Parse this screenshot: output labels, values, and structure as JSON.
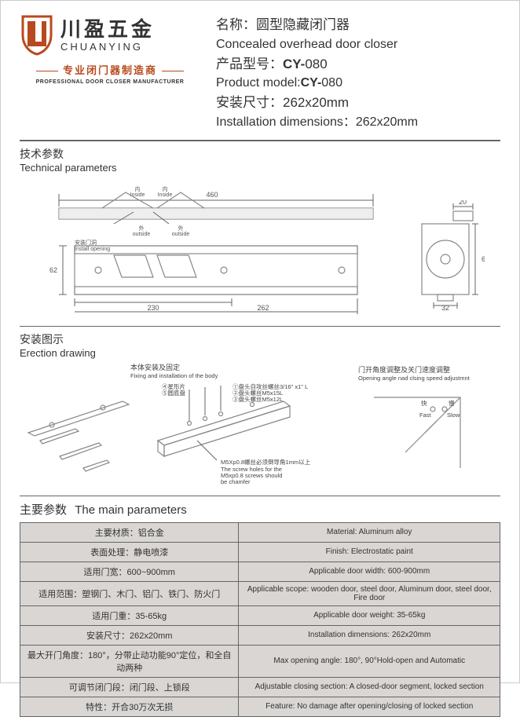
{
  "brand": {
    "cn": "川盈五金",
    "en": "CHUANYING",
    "tagline_cn": "专业闭门器制造商",
    "tagline_en": "PROFESSIONAL DOOR CLOSER MANUFACTURER",
    "shield_color": "#b74a1f",
    "shield_text_color": "#ffffff"
  },
  "product": {
    "name_label_cn": "名称：",
    "name_cn": "圆型隐藏闭门器",
    "name_en": "Concealed overhead door closer",
    "model_label_cn": "产品型号：",
    "model_prefix": "CY-",
    "model_suffix": "080",
    "model_label_en": "Product model:",
    "dim_label_cn": "安装尺寸：",
    "dim_cn": "262x20mm",
    "dim_label_en": "Installation dimensions：",
    "dim_en": "262x20mm"
  },
  "sections": {
    "tech_cn": "技术参数",
    "tech_en": "Technical parameters",
    "erect_cn": "安装图示",
    "erect_en": "Erection drawing",
    "main_cn": "主要参数",
    "main_en": "The main parameters"
  },
  "tech_diagram": {
    "dim_460": "460",
    "dim_230": "230",
    "dim_262": "262",
    "dim_62": "62",
    "dim_20": "20",
    "dim_32": "32",
    "label_inside_cn": "内",
    "label_inside_en": "Inside",
    "label_outside_cn": "外",
    "label_outside_en": "outside",
    "label_install_cn": "安装门洞",
    "label_install_en": "Install opening"
  },
  "erection": {
    "fixing_cn": "本体安装及固定",
    "fixing_en": "Fixing and installation of the body",
    "screws_a": "①盘头自攻丝螺丝3/16\" x1\" L",
    "screws_b": "②盘头螺丝M5x15L",
    "screws_c": "③盘头螺丝M5x12L",
    "screws_d": "④星形片",
    "screws_e": "⑤圆底盘",
    "note_cn": "M5Xp0.8螺丝必须倒导角1mm以上",
    "note_en1": "The screw holes for the",
    "note_en2": "M5xp0.8 screws should",
    "note_en3": "be chamfer",
    "angle_cn": "门开角度调整及关门速度调整",
    "angle_en": "Opening angle nad clsing speed adjustmnt",
    "fast_cn": "快",
    "slow_cn": "慢",
    "fast_en": "Fast",
    "slow_en": "Slow"
  },
  "params_table": {
    "rows": [
      {
        "cn": "主要材质：铝合金",
        "en": "Material: Aluminum alloy"
      },
      {
        "cn": "表面处理：静电喷漆",
        "en": "Finish: Electrostatic paint"
      },
      {
        "cn": "适用门宽：600~900mm",
        "en": "Applicable door width: 600-900mm"
      },
      {
        "cn": "适用范围：塑钢门、木门、铝门、铁门、防火门",
        "en": "Applicable scope: wooden door, steel door, Aluminum door, steel door, Fire door"
      },
      {
        "cn": "适用门重：35-65kg",
        "en": "Applicable door weight: 35-65kg"
      },
      {
        "cn": "安装尺寸：262x20mm",
        "en": "Installation dimensions: 262x20mm"
      },
      {
        "cn": "最大开门角度：180°，分带止动功能90°定位，和全自动两种",
        "en": "Max opening angle: 180°, 90°Hold-open and Automatic"
      },
      {
        "cn": "可调节闭门段：闭门段、上锁段",
        "en": "Adjustable closing section: A closed-door segment, locked section"
      },
      {
        "cn": "特性：开合30万次无损",
        "en": "Feature: No damage after opening/closing of locked section"
      }
    ]
  },
  "colors": {
    "accent": "#b74a1f",
    "text": "#333333",
    "line": "#666666",
    "table_bg": "#d9d6d3"
  }
}
